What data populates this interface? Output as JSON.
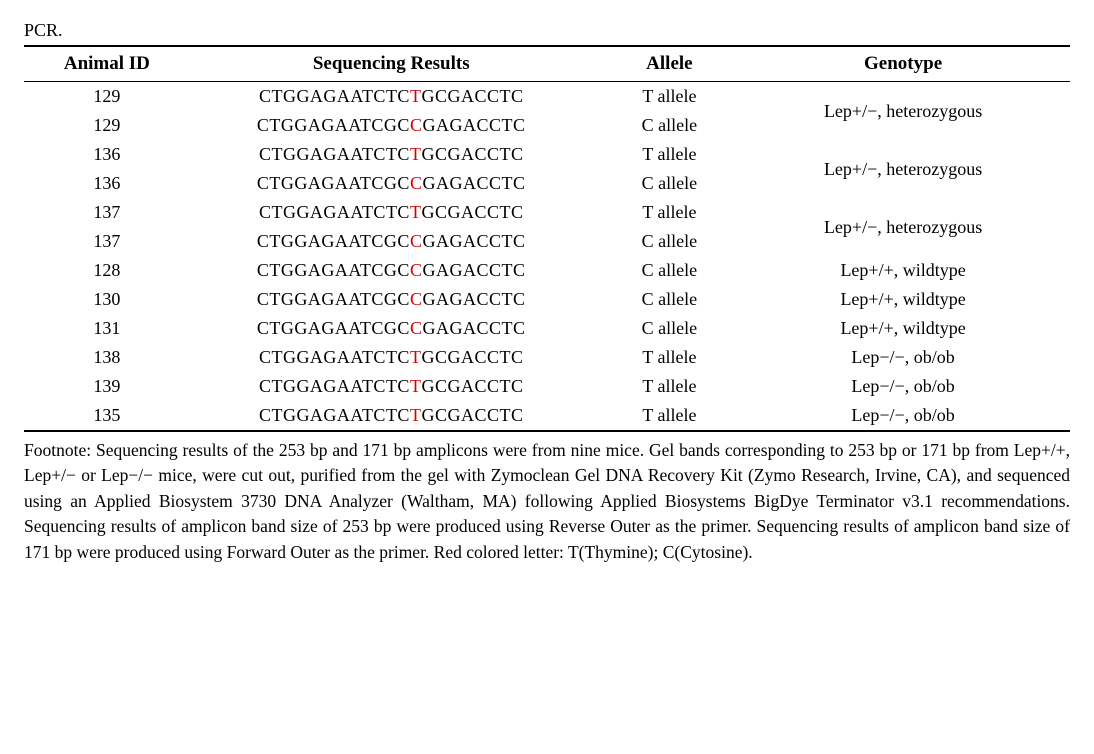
{
  "pretext": "PCR.",
  "headers": {
    "id": "Animal ID",
    "seq": "Sequencing Results",
    "allele": "Allele",
    "genotype": "Genotype"
  },
  "rows": [
    {
      "id": "129",
      "seq_pre": "CTGGAGAATCTC",
      "seq_mut": "T",
      "seq_post": "GCGACCTC",
      "allele": "T allele"
    },
    {
      "id": "129",
      "seq_pre": "CTGGAGAATCGC",
      "seq_mut": "C",
      "seq_post": "GAGACCTC",
      "allele": "C allele"
    },
    {
      "id": "136",
      "seq_pre": "CTGGAGAATCTC",
      "seq_mut": "T",
      "seq_post": "GCGACCTC",
      "allele": "T allele"
    },
    {
      "id": "136",
      "seq_pre": "CTGGAGAATCGC",
      "seq_mut": "C",
      "seq_post": "GAGACCTC",
      "allele": "C allele"
    },
    {
      "id": "137",
      "seq_pre": "CTGGAGAATCTC",
      "seq_mut": "T",
      "seq_post": "GCGACCTC",
      "allele": "T allele"
    },
    {
      "id": "137",
      "seq_pre": "CTGGAGAATCGC",
      "seq_mut": "C",
      "seq_post": "GAGACCTC",
      "allele": "C allele"
    },
    {
      "id": "128",
      "seq_pre": "CTGGAGAATCGC",
      "seq_mut": "C",
      "seq_post": "GAGACCTC",
      "allele": "C allele"
    },
    {
      "id": "130",
      "seq_pre": "CTGGAGAATCGC",
      "seq_mut": "C",
      "seq_post": "GAGACCTC",
      "allele": "C allele"
    },
    {
      "id": "131",
      "seq_pre": "CTGGAGAATCGC",
      "seq_mut": "C",
      "seq_post": "GAGACCTC",
      "allele": "C allele"
    },
    {
      "id": "138",
      "seq_pre": "CTGGAGAATCTC",
      "seq_mut": "T",
      "seq_post": "GCGACCTC",
      "allele": "T allele"
    },
    {
      "id": "139",
      "seq_pre": "CTGGAGAATCTC",
      "seq_mut": "T",
      "seq_post": "GCGACCTC",
      "allele": "T allele"
    },
    {
      "id": "135",
      "seq_pre": "CTGGAGAATCTC",
      "seq_mut": "T",
      "seq_post": "GCGACCTC",
      "allele": "T allele"
    }
  ],
  "genotypes": [
    {
      "row_start": 0,
      "span": 2,
      "text": "Lep+/−, heterozygous"
    },
    {
      "row_start": 2,
      "span": 2,
      "text": "Lep+/−, heterozygous"
    },
    {
      "row_start": 4,
      "span": 2,
      "text": "Lep+/−, heterozygous"
    },
    {
      "row_start": 6,
      "span": 1,
      "text": "Lep+/+, wildtype"
    },
    {
      "row_start": 7,
      "span": 1,
      "text": "Lep+/+, wildtype"
    },
    {
      "row_start": 8,
      "span": 1,
      "text": "Lep+/+, wildtype"
    },
    {
      "row_start": 9,
      "span": 1,
      "text": "Lep−/−, ob/ob"
    },
    {
      "row_start": 10,
      "span": 1,
      "text": "Lep−/−, ob/ob"
    },
    {
      "row_start": 11,
      "span": 1,
      "text": "Lep−/−, ob/ob"
    }
  ],
  "footnote": "Footnote: Sequencing results of the 253 bp and 171 bp amplicons were from nine mice. Gel bands corresponding to 253 bp or 171 bp from Lep+/+, Lep+/− or Lep−/− mice, were cut out, purified from the gel with Zymoclean Gel DNA Recovery Kit (Zymo Research, Irvine, CA), and sequenced using an Applied Biosystem 3730 DNA Analyzer (Waltham, MA) following Applied Biosystems BigDye Terminator v3.1 recommendations. Sequencing results of amplicon band size of 253 bp were produced using Reverse Outer as the primer. Sequencing results of amplicon band size of 171 bp were produced using Forward Outer as the primer. Red colored letter: T(Thymine); C(Cytosine)."
}
